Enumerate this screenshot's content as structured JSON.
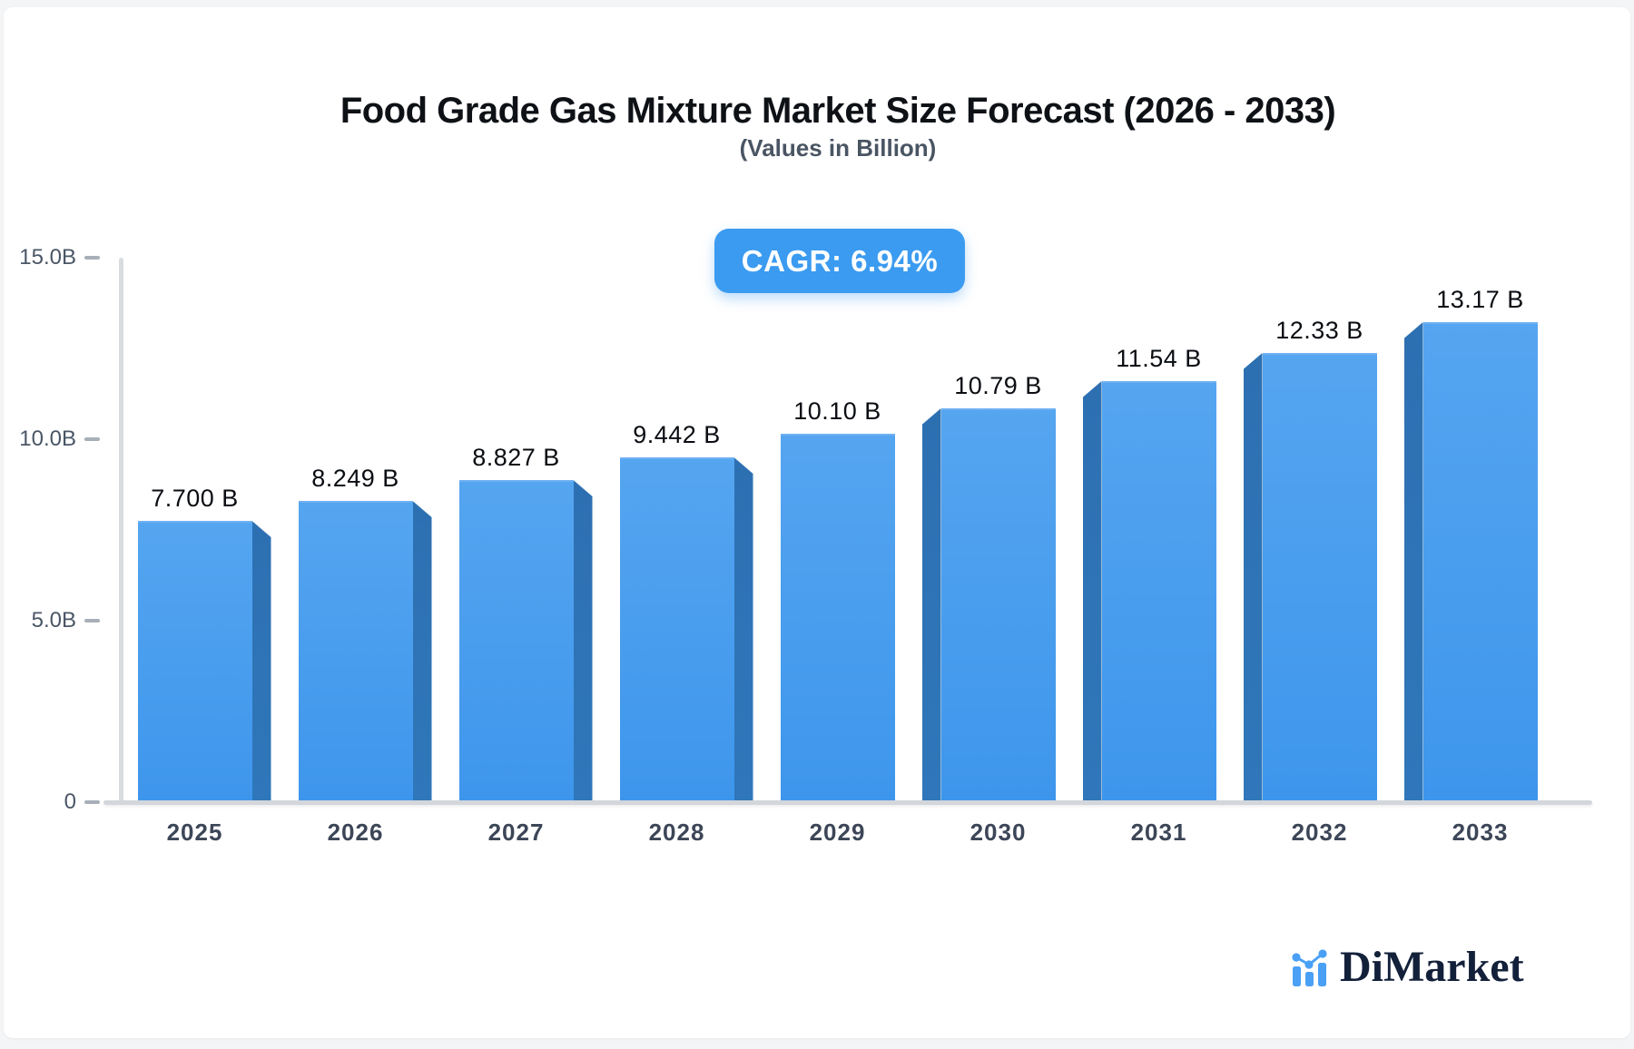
{
  "chart_data": {
    "type": "bar",
    "title": "Food Grade Gas Mixture Market Size Forecast (2026 - 2033)",
    "subtitle": "(Values in Billion)",
    "cagr_label": "CAGR: 6.94%",
    "categories": [
      "2025",
      "2026",
      "2027",
      "2028",
      "2029",
      "2030",
      "2031",
      "2032",
      "2033"
    ],
    "values": [
      7.7,
      8.249,
      8.827,
      9.442,
      10.1,
      10.79,
      11.54,
      12.33,
      13.17
    ],
    "bar_labels": [
      "7.700 B",
      "8.249 B",
      "8.827 B",
      "9.442 B",
      "10.10 B",
      "10.79 B",
      "11.54 B",
      "12.33 B",
      "13.17 B"
    ],
    "xlabel": "",
    "ylabel": "",
    "ylim": [
      0,
      15
    ],
    "yticks": [
      {
        "label": "15.0B",
        "value": 15
      },
      {
        "label": "10.0B",
        "value": 10
      },
      {
        "label": "5.0B",
        "value": 5
      },
      {
        "label": "0",
        "value": 0
      }
    ],
    "grid": "off",
    "legend": "none",
    "colors": {
      "bar_face": "#459cee",
      "bar_face_top": "#55a5f0",
      "bar_face_bottom": "#3e96ec",
      "bar_side": "#2e74b6",
      "badge_bg": "#3b9bf0",
      "axis": "#d3d6db",
      "tick": "#a9afb9",
      "title_text": "#0e1116",
      "subtitle_text": "#4a5563",
      "axis_label_text": "#4a5666",
      "category_text": "#3c4657",
      "value_label_text": "#0a0d12"
    }
  },
  "branding": {
    "logo_text": "DiMarket",
    "logo_icon": "bar-chart-logo-icon",
    "logo_color": "#13203a",
    "logo_icon_color": "#49a0f5"
  }
}
